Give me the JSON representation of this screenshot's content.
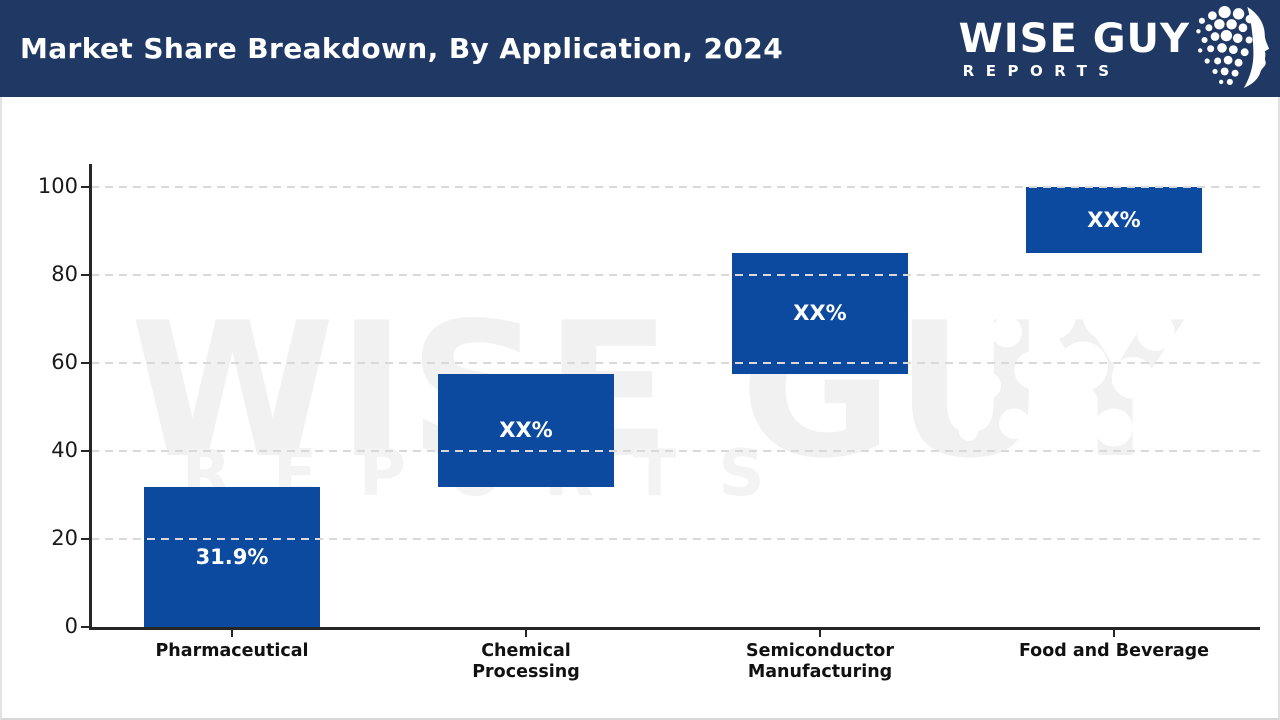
{
  "header": {
    "title": "Market Share Breakdown, By Application, 2024",
    "logo_line1": "WISE GUY",
    "logo_line2": "REPORTS"
  },
  "watermark": {
    "line1": "WISE GUY",
    "line2": "REPORTS"
  },
  "colors": {
    "header_bg": "#1f3864",
    "bar": "#0b4a9f",
    "grid": "#d9d9d9",
    "axis": "#262626",
    "bar_label": "#ffffff",
    "watermark": "#f1f1f1"
  },
  "chart_data": {
    "type": "bar",
    "variant": "waterfall",
    "title": "Market Share Breakdown, By Application, 2024",
    "categories": [
      "Pharmaceutical",
      "Chemical Processing",
      "Semiconductor Manufacturing",
      "Food and Beverage"
    ],
    "category_lines": [
      [
        "Pharmaceutical"
      ],
      [
        "Chemical",
        "Processing"
      ],
      [
        "Semiconductor",
        "Manufacturing"
      ],
      [
        "Food and Beverage"
      ]
    ],
    "segments": [
      {
        "category": "Pharmaceutical",
        "start": 0,
        "end": 31.9,
        "label": "31.9%"
      },
      {
        "category": "Chemical Processing",
        "start": 31.9,
        "end": 57.6,
        "label": "XX%"
      },
      {
        "category": "Semiconductor Manufacturing",
        "start": 57.6,
        "end": 85.1,
        "label": "XX%"
      },
      {
        "category": "Food and Beverage",
        "start": 85.1,
        "end": 100,
        "label": "XX%"
      }
    ],
    "xlabel": "",
    "ylabel": "",
    "ylim": [
      0,
      100
    ],
    "yticks": [
      0,
      20,
      40,
      60,
      80,
      100
    ],
    "grid": "horizontal-dashed",
    "legend": "none"
  }
}
